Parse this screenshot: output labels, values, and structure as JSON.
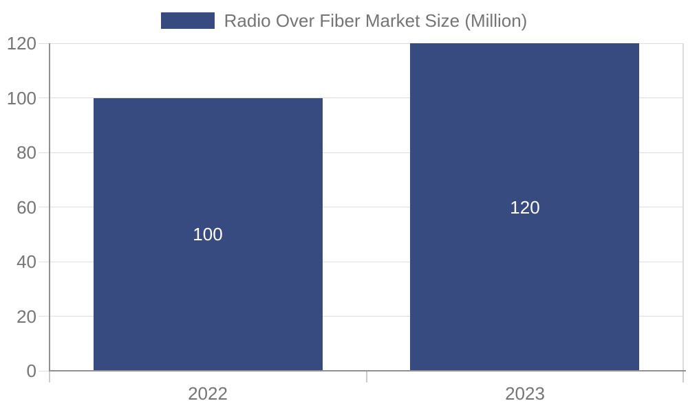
{
  "chart_data": {
    "type": "bar",
    "title": "Radio Over Fiber Market Size (Million)",
    "categories": [
      "2022",
      "2023"
    ],
    "values": [
      100,
      120
    ],
    "data_labels": [
      "100",
      "120"
    ],
    "ylim": [
      0,
      120
    ],
    "yticks": [
      0,
      20,
      40,
      60,
      80,
      100,
      120
    ],
    "ytick_labels": [
      "0",
      "20",
      "40",
      "60",
      "80",
      "100",
      "120"
    ],
    "xlabel": "",
    "ylabel": "",
    "grid": true,
    "legend_position": "top-center",
    "colors": {
      "bar": "#374B80",
      "bar_label_text": "#FFFFFF",
      "axis_text": "#757575",
      "grid_line": "#DDDDDD",
      "axis_line": "#909090",
      "tick_line": "#CCCCCC",
      "frame_line": "#DDDDDD",
      "background": "#FFFFFF"
    }
  }
}
